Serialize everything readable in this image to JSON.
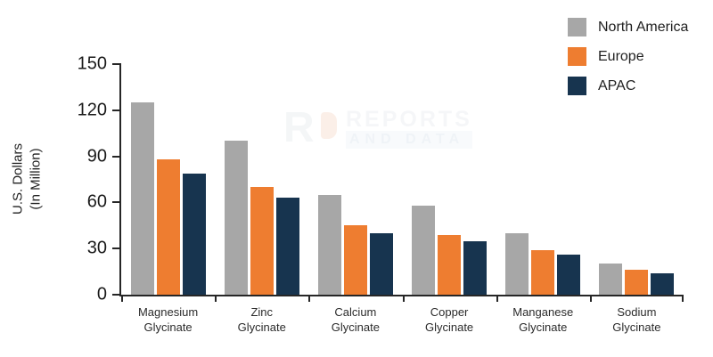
{
  "chart_data": {
    "type": "bar",
    "title": "",
    "ylabel_line1": "U.S. Dollars",
    "ylabel_line2": "(In Million)",
    "categories": [
      "Magnesium Glycinate",
      "Zinc Glycinate",
      "Calcium Glycinate",
      "Copper Glycinate",
      "Manganese Glycinate",
      "Sodium Glycinate"
    ],
    "series": [
      {
        "name": "North America",
        "color": "#a7a7a7",
        "values": [
          125,
          100,
          65,
          58,
          40,
          20
        ]
      },
      {
        "name": "Europe",
        "color": "#ee7d30",
        "values": [
          88,
          70,
          45,
          39,
          29,
          16
        ]
      },
      {
        "name": "APAC",
        "color": "#17344f",
        "values": [
          79,
          63,
          40,
          35,
          26,
          14
        ]
      }
    ],
    "y_ticks": [
      0,
      30,
      60,
      90,
      120,
      150
    ],
    "ylim": [
      0,
      150
    ],
    "grid": "off",
    "legend_position": "top-right",
    "axis_color": "#262626"
  },
  "watermark": {
    "logo_text": "R",
    "line1": "REPORTS",
    "line2": "AND DATA"
  }
}
